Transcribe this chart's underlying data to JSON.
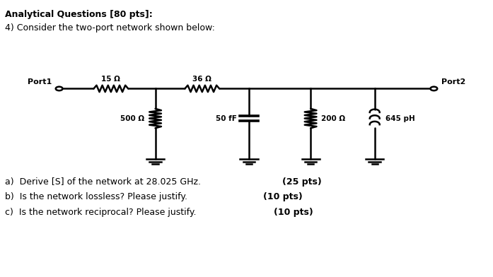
{
  "title_line1": "Analytical Questions [80 pts]:",
  "title_line2": "4) Consider the two-port network shown below:",
  "question_a": "a)  Derive [S] of the network at 28.025 GHz. (25 pts)",
  "question_b": "b)  Is the network lossless? Please justify. (10 pts)",
  "question_c": "c)  Is the network reciprocal? Please justify. (10 pts)",
  "background_color": "#ffffff",
  "text_color": "#000000",
  "line_color": "#000000",
  "fig_width": 6.97,
  "fig_height": 3.92
}
